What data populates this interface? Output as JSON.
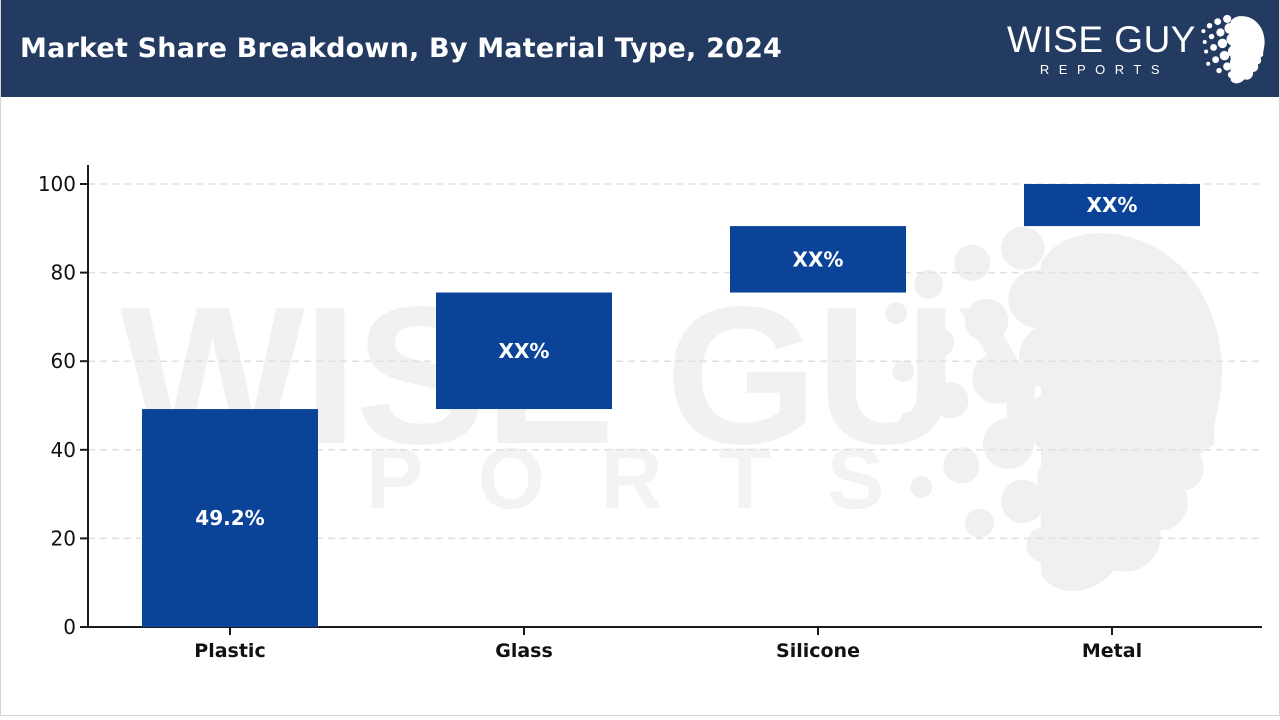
{
  "header": {
    "title": "Market Share Breakdown, By Material Type, 2024",
    "logo": {
      "line1": "WISE GUY",
      "line2": "REPORTS"
    }
  },
  "watermark": {
    "line1": "WISE GUY",
    "line2": "P O R T S"
  },
  "colors": {
    "header_background": "#233a61",
    "bar": "#0b4399",
    "bar_label": "#ffffff",
    "grid": "#e0e0e0",
    "axis": "#1a1a1a",
    "tick_label": "#111111",
    "watermark": "#f1f1f1",
    "frame_border": "#d6d6d6"
  },
  "chart_data": {
    "type": "bar",
    "subtype": "waterfall",
    "title": "Market Share Breakdown, By Material Type, 2024",
    "xlabel": "",
    "ylabel": "",
    "categories": [
      "Plastic",
      "Glass",
      "Silicone",
      "Metal"
    ],
    "segments": [
      {
        "category": "Plastic",
        "start": 0,
        "end": 49.2,
        "label": "49.2%"
      },
      {
        "category": "Glass",
        "start": 49.2,
        "end": 75.5,
        "label": "XX%"
      },
      {
        "category": "Silicone",
        "start": 75.5,
        "end": 90.5,
        "label": "XX%"
      },
      {
        "category": "Metal",
        "start": 90.5,
        "end": 100,
        "label": "XX%"
      }
    ],
    "yticks": [
      0,
      20,
      40,
      60,
      80,
      100
    ],
    "ylim": [
      0,
      104
    ],
    "grid": "horizontal-dashed",
    "legend": "none"
  }
}
